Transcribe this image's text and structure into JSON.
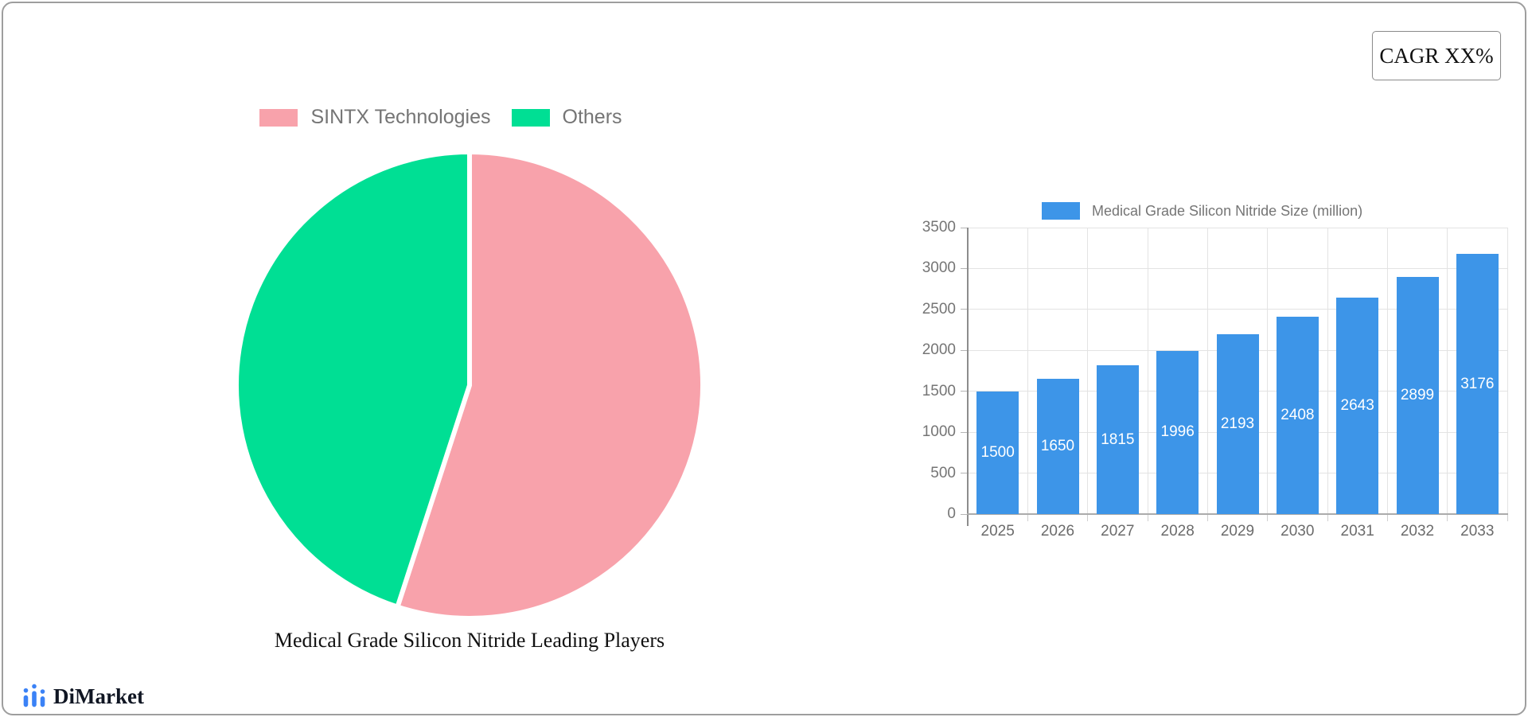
{
  "cagr_badge": {
    "label": "CAGR XX%"
  },
  "brand": {
    "name": "DiMarket",
    "icon": "dimarket-bars-icon",
    "icon_color": "#3b82f6"
  },
  "chart_data": [
    {
      "id": "leading_players_pie",
      "type": "pie",
      "title": "Medical Grade Silicon Nitride Leading Players",
      "legend_position": "top",
      "start_angle_deg": 0,
      "slice_gap_color": "#ffffff",
      "slices": [
        {
          "label": "SINTX Technologies",
          "value": 55,
          "color": "#f8a2ab"
        },
        {
          "label": "Others",
          "value": 45,
          "color": "#00df94"
        }
      ]
    },
    {
      "id": "market_size_bar",
      "type": "bar",
      "legend": [
        {
          "label": "Medical Grade Silicon Nitride Size (million)",
          "color": "#3d95e8"
        }
      ],
      "categories": [
        "2025",
        "2026",
        "2027",
        "2028",
        "2029",
        "2030",
        "2031",
        "2032",
        "2033"
      ],
      "series": [
        {
          "name": "Medical Grade Silicon Nitride Size (million)",
          "color": "#3d95e8",
          "values": [
            1500,
            1650,
            1815,
            1996,
            2193,
            2408,
            2643,
            2899,
            3176
          ]
        }
      ],
      "ylim": [
        0,
        3500
      ],
      "ytick_step": 500,
      "yticks": [
        "0",
        "500",
        "1000",
        "1500",
        "2000",
        "2500",
        "3000",
        "3500"
      ],
      "grid": true,
      "value_labels": {
        "position": "inside-middle",
        "color": "#ffffff"
      }
    }
  ]
}
